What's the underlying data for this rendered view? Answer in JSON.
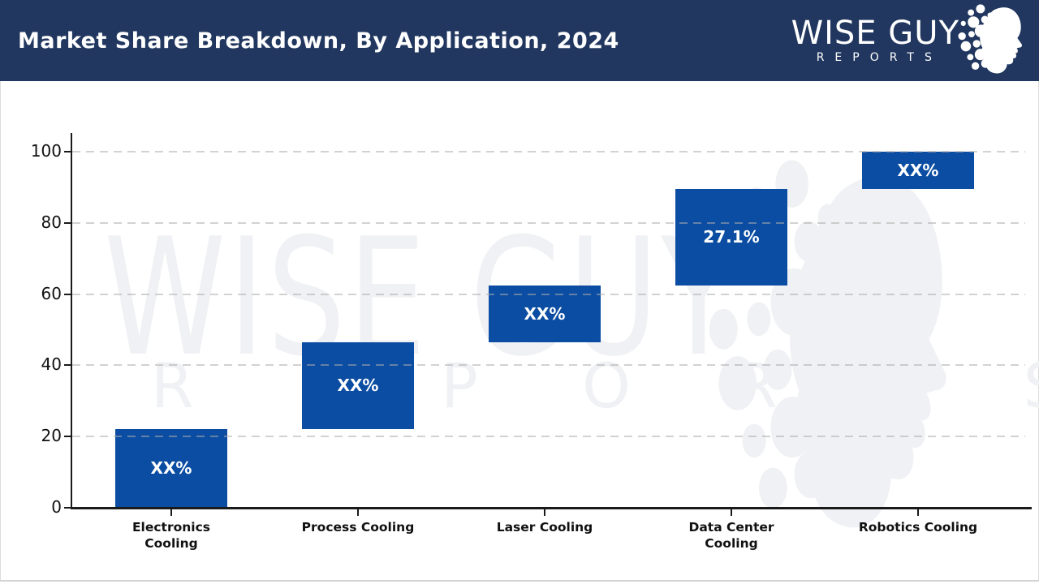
{
  "header": {
    "title": "Market Share Breakdown, By Application, 2024",
    "logo": {
      "primary": "WISE GUY",
      "secondary": "REPORTS"
    }
  },
  "watermark": {
    "primary": "WISE GUY",
    "secondary": "R E P O R T S"
  },
  "colors": {
    "header_bg": "#21375F",
    "bar": "#0B4DA2",
    "bar_label": "#FFFFFF",
    "axis": "#1A1A1A",
    "grid": "#C9C9C9",
    "watermark": "#F0F1F4",
    "title_text": "#FFFFFF"
  },
  "chart_data": {
    "type": "bar",
    "variant": "waterfall",
    "title": "Market Share Breakdown, By Application, 2024",
    "xlabel": "",
    "ylabel": "",
    "ylim": [
      0,
      105
    ],
    "yticks": [
      0,
      20,
      40,
      60,
      80,
      100
    ],
    "grid": "horizontal-dashed",
    "legend": false,
    "categories": [
      "Electronics Cooling",
      "Process Cooling",
      "Laser Cooling",
      "Data Center Cooling",
      "Robotics Cooling"
    ],
    "category_lines": [
      [
        "Electronics",
        "Cooling"
      ],
      [
        "Process Cooling"
      ],
      [
        "Laser Cooling"
      ],
      [
        "Data Center",
        "Cooling"
      ],
      [
        "Robotics Cooling"
      ]
    ],
    "segments": [
      {
        "category": "Electronics Cooling",
        "start": 0,
        "end": 22.1,
        "value_label": "XX%"
      },
      {
        "category": "Process Cooling",
        "start": 22.1,
        "end": 46.5,
        "value_label": "XX%"
      },
      {
        "category": "Laser Cooling",
        "start": 46.5,
        "end": 62.5,
        "value_label": "XX%"
      },
      {
        "category": "Data Center Cooling",
        "start": 62.5,
        "end": 89.6,
        "value_label": "27.1%",
        "delta": 27.1
      },
      {
        "category": "Robotics Cooling",
        "start": 89.6,
        "end": 100,
        "value_label": "XX%"
      }
    ]
  }
}
